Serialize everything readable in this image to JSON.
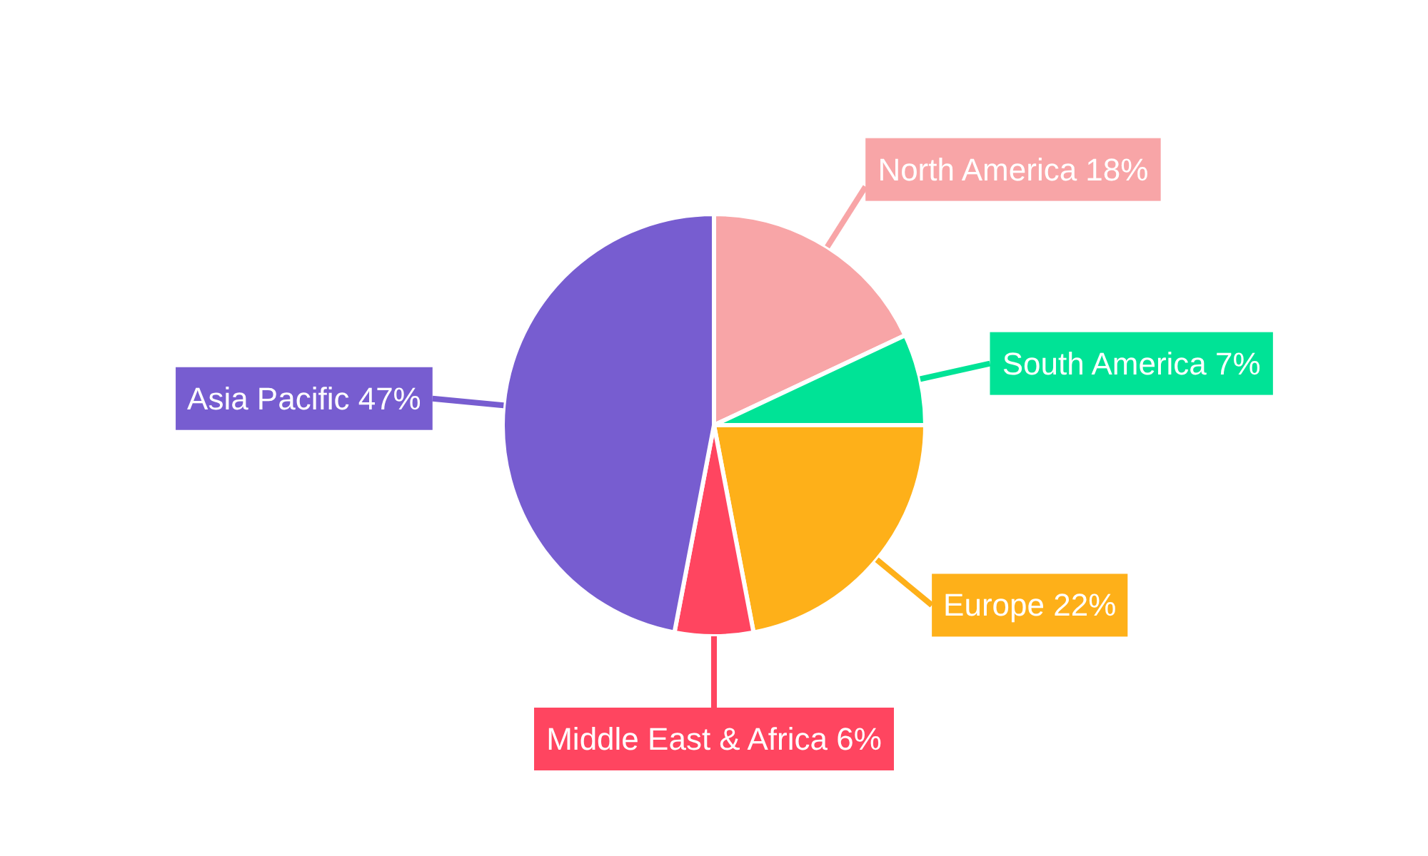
{
  "chart_data": {
    "type": "pie",
    "categories": [
      "North America",
      "South America",
      "Europe",
      "Middle East & Africa",
      "Asia Pacific"
    ],
    "values": [
      18,
      7,
      22,
      6,
      47
    ],
    "value_labels": [
      "18%",
      "7%",
      "22%",
      "6%",
      "47%"
    ],
    "colors": [
      "#f8a5a7",
      "#00e396",
      "#feb019",
      "#ff4560",
      "#775dd0"
    ],
    "legend": false
  }
}
